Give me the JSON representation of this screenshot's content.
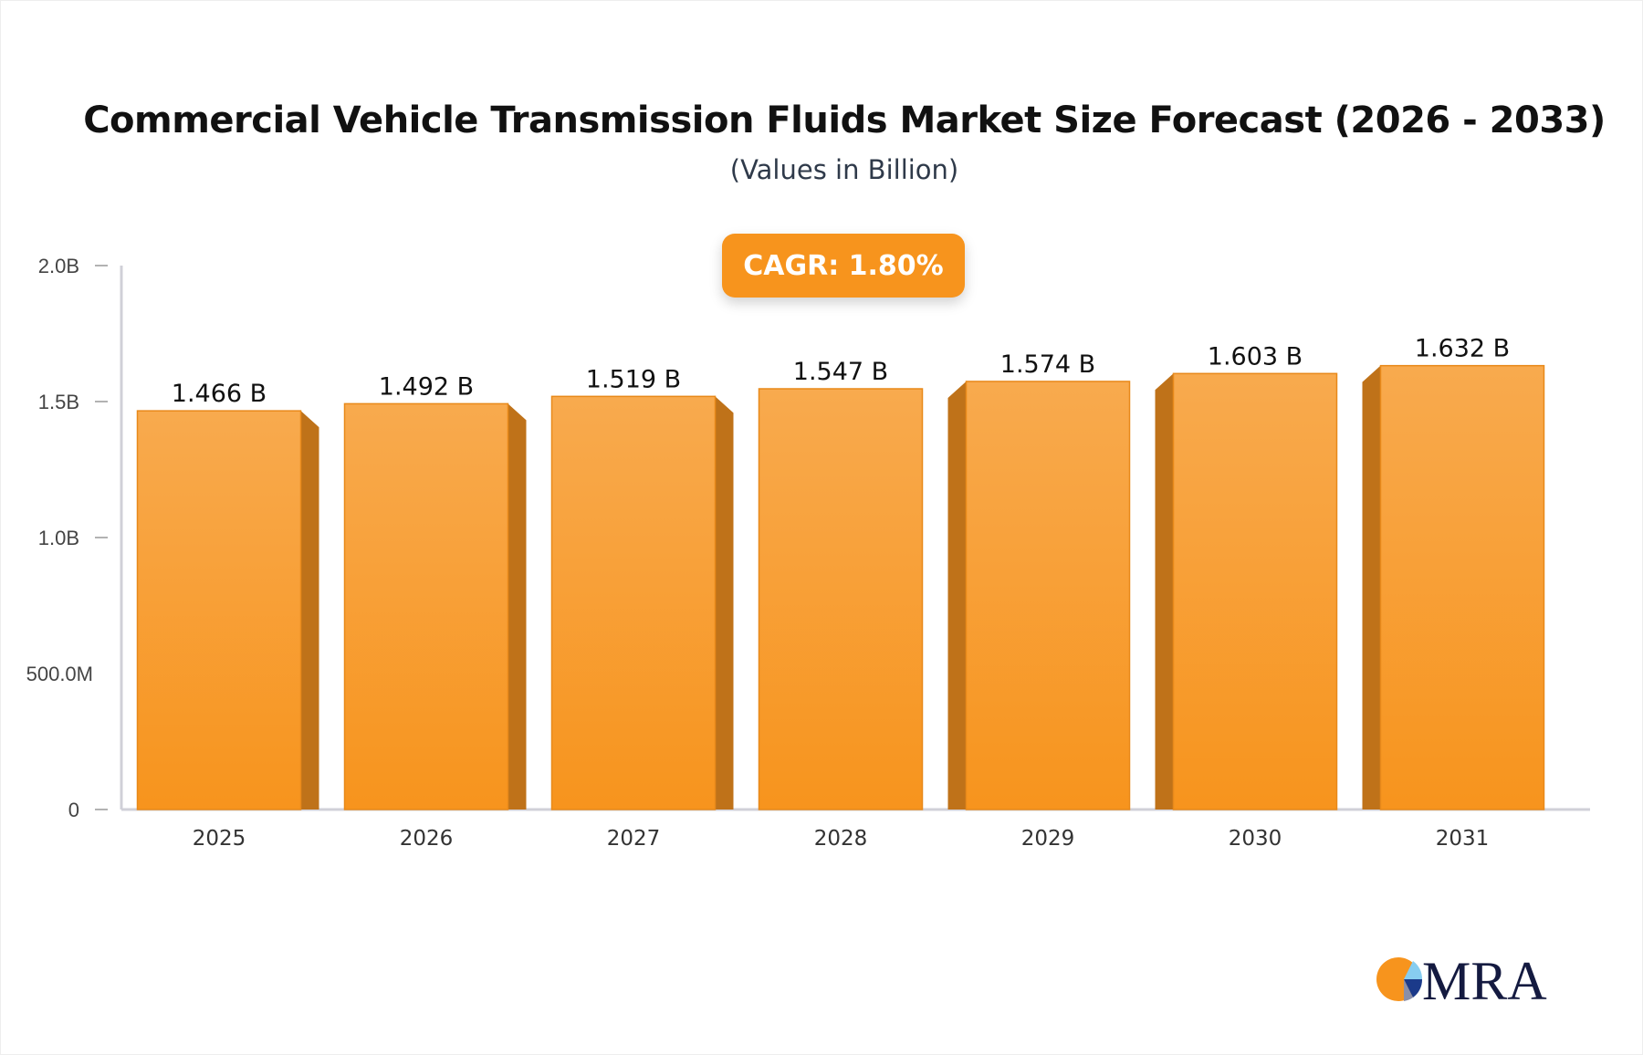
{
  "chart_data": {
    "type": "bar",
    "title": "Commercial Vehicle Transmission Fluids Market Size Forecast (2026 - 2033)",
    "subtitle": "(Values in Billion)",
    "annotation": "CAGR: 1.80%",
    "categories": [
      "2025",
      "2026",
      "2027",
      "2028",
      "2029",
      "2030",
      "2031"
    ],
    "values": [
      1.466,
      1.492,
      1.519,
      1.547,
      1.574,
      1.603,
      1.632
    ],
    "data_labels": [
      "1.466 B",
      "1.492 B",
      "1.519 B",
      "1.547 B",
      "1.574 B",
      "1.603 B",
      "1.632 B"
    ],
    "ylim": [
      0,
      2.0
    ],
    "yticks": [
      0,
      0.5,
      1.0,
      1.5,
      2.0
    ],
    "ytick_labels": [
      "0",
      "500.0M",
      "1.0B",
      "1.5B",
      "2.0B"
    ],
    "xlabel": "",
    "ylabel": "",
    "grid": false,
    "colors": {
      "bar_front": "#f7a347",
      "bar_side": "#bf7219",
      "axis": "#d0d0d8"
    }
  },
  "logo": {
    "text": "MRA"
  }
}
